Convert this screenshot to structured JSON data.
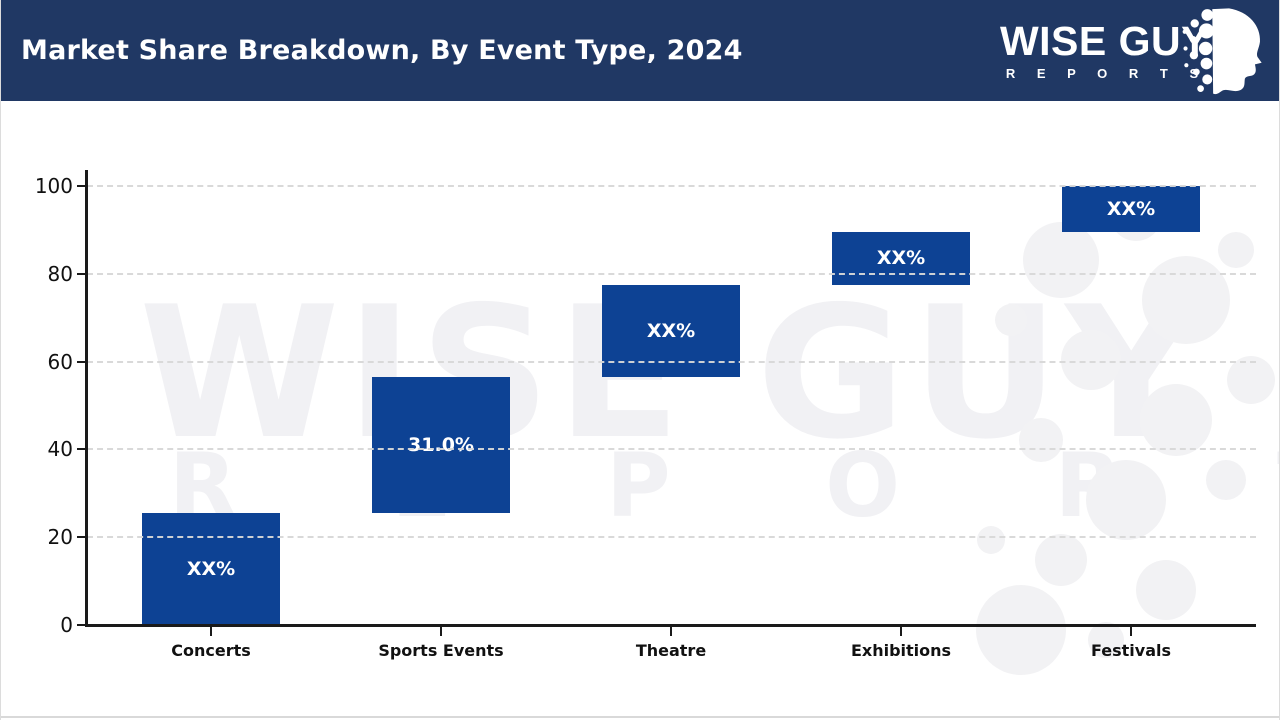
{
  "header": {
    "title": "Market Share Breakdown, By Event Type, 2024",
    "logo": {
      "wordmark": "WISE GUY",
      "tagline": "R E P O R T S"
    }
  },
  "watermark": {
    "line1": "WISE GUY",
    "line2": "R E P O R T S"
  },
  "colors": {
    "header_bg": "#203864",
    "bar": "#0d4294",
    "grid": "#d8d8d8",
    "axis": "#1a1a1a",
    "bar_label": "#ffffff",
    "watermark": "#f1f1f4"
  },
  "chart_data": {
    "type": "bar",
    "subtype": "waterfall",
    "title": "Market Share Breakdown, By Event Type, 2024",
    "categories": [
      "Concerts",
      "Sports Events",
      "Theatre",
      "Exhibitions",
      "Festivals"
    ],
    "segments": [
      {
        "category": "Concerts",
        "start": 0,
        "end": 25.5,
        "label": "XX%"
      },
      {
        "category": "Sports Events",
        "start": 25.5,
        "end": 56.5,
        "label": "31.0%",
        "value": 31.0
      },
      {
        "category": "Theatre",
        "start": 56.5,
        "end": 77.5,
        "label": "XX%"
      },
      {
        "category": "Exhibitions",
        "start": 77.5,
        "end": 89.5,
        "label": "XX%"
      },
      {
        "category": "Festivals",
        "start": 89.5,
        "end": 100,
        "label": "XX%"
      }
    ],
    "xlabel": "",
    "ylabel": "",
    "ylim": [
      0,
      104
    ],
    "yticks": [
      0,
      20,
      40,
      60,
      80,
      100
    ],
    "grid": "dashed horizontal, drawn over bars",
    "legend": "none"
  }
}
